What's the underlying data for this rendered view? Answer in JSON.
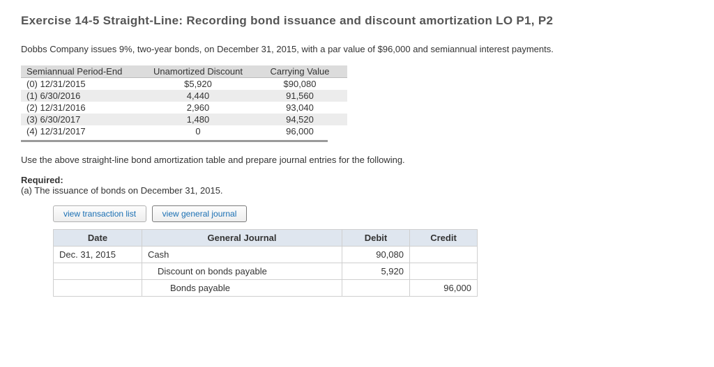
{
  "title": "Exercise 14-5 Straight-Line: Recording bond issuance and discount amortization LO P1, P2",
  "intro": "Dobbs Company issues 9%, two-year bonds, on December 31, 2015, with a par value of $96,000 and semiannual interest payments.",
  "amort": {
    "headers": [
      "Semiannual Period-End",
      "Unamortized Discount",
      "Carrying Value"
    ],
    "rows": [
      {
        "period": "(0)  12/31/2015",
        "discount": "$5,920",
        "carry": "$90,080"
      },
      {
        "period": "(1)   6/30/2016",
        "discount": "4,440",
        "carry": "91,560"
      },
      {
        "period": "(2)  12/31/2016",
        "discount": "2,960",
        "carry": "93,040"
      },
      {
        "period": "(3)   6/30/2017",
        "discount": "1,480",
        "carry": "94,520"
      },
      {
        "period": "(4)  12/31/2017",
        "discount": "0",
        "carry": "96,000"
      }
    ]
  },
  "instruction": "Use the above straight-line bond amortization table and prepare journal entries for the following.",
  "required_label": "Required:",
  "required_item": "(a) The issuance of bonds on December 31, 2015.",
  "tabs": {
    "transaction": "view transaction list",
    "journal": "view general journal"
  },
  "journal": {
    "headers": {
      "date": "Date",
      "gj": "General Journal",
      "debit": "Debit",
      "credit": "Credit"
    },
    "rows": [
      {
        "date": "Dec. 31, 2015",
        "account": "Cash",
        "indent": 0,
        "debit": "90,080",
        "credit": ""
      },
      {
        "date": "",
        "account": "Discount on bonds payable",
        "indent": 1,
        "debit": "5,920",
        "credit": ""
      },
      {
        "date": "",
        "account": "Bonds payable",
        "indent": 2,
        "debit": "",
        "credit": "96,000"
      }
    ]
  }
}
